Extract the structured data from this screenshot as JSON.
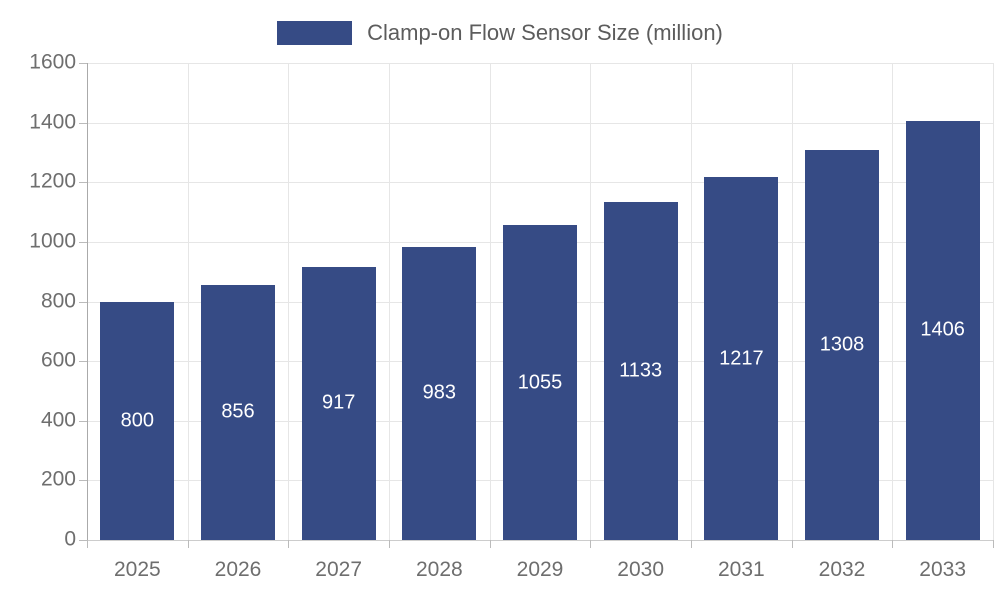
{
  "legend": {
    "label": "Clamp-on Flow Sensor Size (million)"
  },
  "colors": {
    "bar": "#364B85",
    "legend_text": "#5c5c5c",
    "axis_text": "#6e6e6e",
    "grid": "#e6e6e6",
    "baseline": "#cccccc",
    "axis_line": "#aaaaaa",
    "tick": "#bbbbbb",
    "value_label": "#ffffff",
    "background": "#ffffff"
  },
  "chart_data": {
    "type": "bar",
    "title": "Clamp-on Flow Sensor Size (million)",
    "categories": [
      "2025",
      "2026",
      "2027",
      "2028",
      "2029",
      "2030",
      "2031",
      "2032",
      "2033"
    ],
    "values": [
      800,
      856,
      917,
      983,
      1055,
      1133,
      1217,
      1308,
      1406
    ],
    "series_name": "Clamp-on Flow Sensor Size (million)",
    "xlabel": "",
    "ylabel": "",
    "ylim": [
      0,
      1600
    ],
    "yticks": [
      0,
      200,
      400,
      600,
      800,
      1000,
      1200,
      1400,
      1600
    ],
    "grid": true,
    "legend_position": "top",
    "value_labels": "inside-center"
  }
}
